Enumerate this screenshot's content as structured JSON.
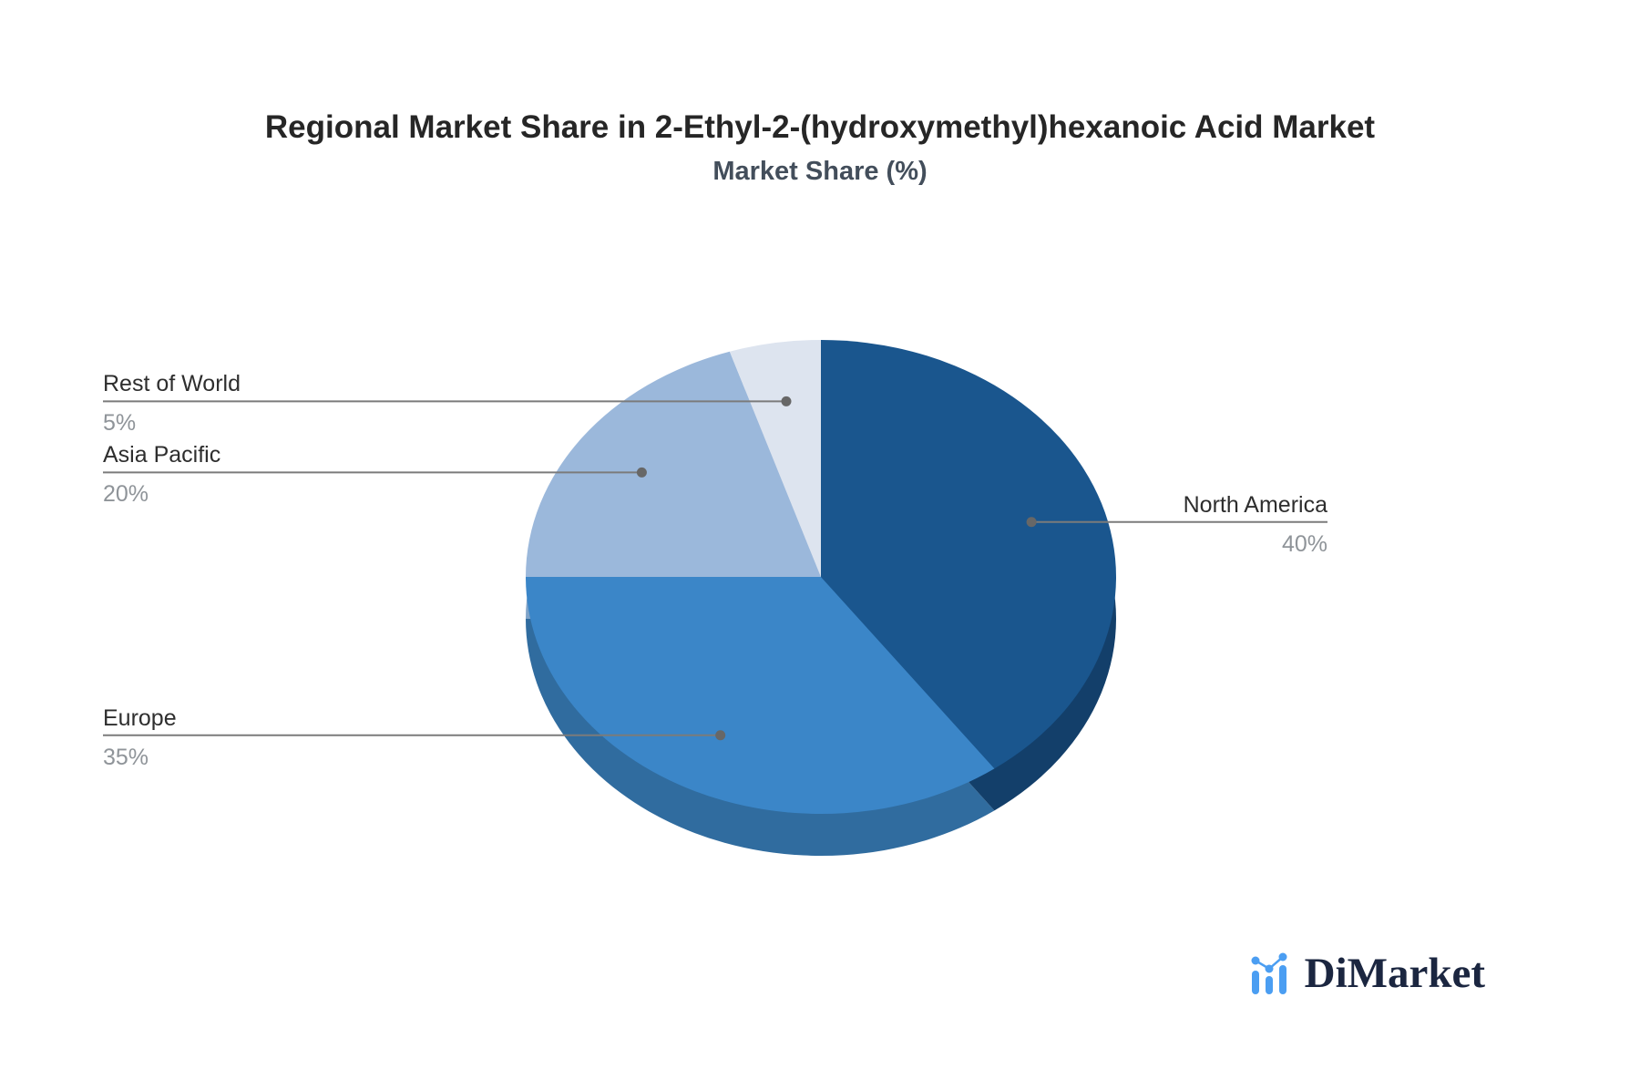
{
  "title": "Regional Market Share in 2-Ethyl-2-(hydroxymethyl)hexanoic Acid Market",
  "subtitle": "Market Share (%)",
  "brand": {
    "name": "DiMarket",
    "icon": "bar-line-chart-icon",
    "icon_color": "#4b9ef2",
    "text_color": "#1b2640"
  },
  "chart_data": {
    "type": "pie",
    "style": "3d",
    "title": "Regional Market Share in 2-Ethyl-2-(hydroxymethyl)hexanoic Acid Market",
    "subtitle": "Market Share (%)",
    "unit": "%",
    "start_angle_deg": -90,
    "direction": "clockwise",
    "legend_position": "none",
    "leader_line_color": "#7b7b7b",
    "leader_dot_color": "#676767",
    "label_color": "#2e2e2e",
    "value_color": "#8f9499",
    "segments": [
      {
        "label": "North America",
        "value": 40,
        "display": "40%",
        "color": "#1a568e",
        "side_color": "#133f6a",
        "label_side": "right"
      },
      {
        "label": "Europe",
        "value": 35,
        "display": "35%",
        "color": "#3b86c8",
        "side_color": "#306c9f",
        "label_side": "left"
      },
      {
        "label": "Asia Pacific",
        "value": 20,
        "display": "20%",
        "color": "#9bb8db",
        "side_color": "#7fa3c8",
        "label_side": "left"
      },
      {
        "label": "Rest of World",
        "value": 5,
        "display": "5%",
        "color": "#dde4ef",
        "side_color": "#c3cfe3",
        "label_side": "left"
      }
    ]
  }
}
